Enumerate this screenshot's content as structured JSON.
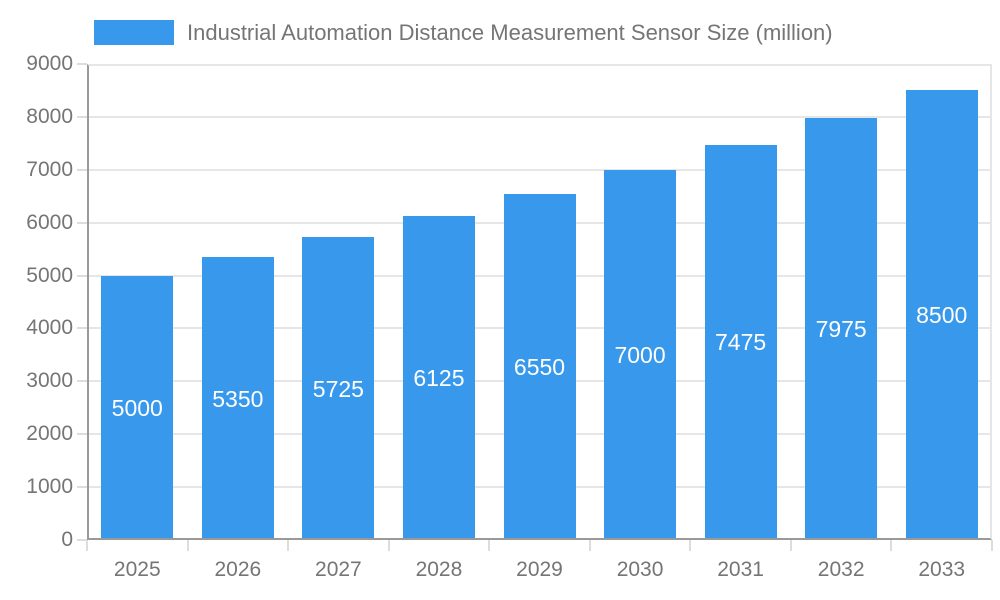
{
  "chart_data": {
    "type": "bar",
    "title": "Industrial Automation Distance Measurement Sensor Size (million)",
    "categories": [
      "2025",
      "2026",
      "2027",
      "2028",
      "2029",
      "2030",
      "2031",
      "2032",
      "2033"
    ],
    "values": [
      5000,
      5350,
      5725,
      6125,
      6550,
      7000,
      7475,
      7975,
      8500
    ],
    "xlabel": "",
    "ylabel": "",
    "ylim": [
      0,
      9000
    ],
    "yticks": [
      0,
      1000,
      2000,
      3000,
      4000,
      5000,
      6000,
      7000,
      8000,
      9000
    ],
    "grid": true,
    "legend_position": "top-left",
    "value_labels": "inside-center",
    "colors": {
      "bar": "#3899EC",
      "value_label": "#FFFFFF",
      "axis_text": "#757575",
      "gridline": "#E6E6E6",
      "axis_line": "#999999",
      "background": "#FFFFFF"
    }
  },
  "legend": {
    "label": "Industrial Automation Distance Measurement Sensor Size (million)"
  }
}
